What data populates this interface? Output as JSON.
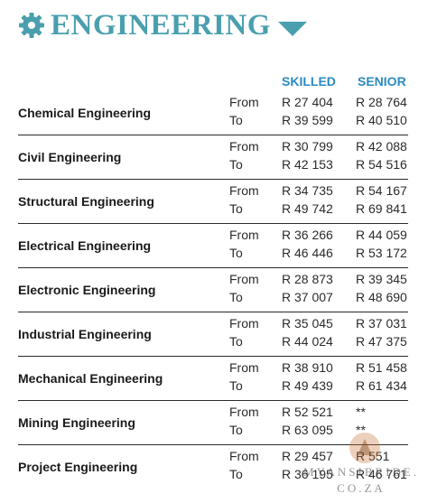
{
  "header": {
    "title": "ENGINEERING",
    "icon_left": "gear-icon",
    "icon_right": "caret-down-icon",
    "accent_color": "#4a9fae"
  },
  "columns": {
    "skilled": "SKILLED",
    "senior": "SENIOR",
    "color": "#2a8ac2"
  },
  "labels": {
    "from": "From",
    "to": "To"
  },
  "rows": [
    {
      "name": "Chemical Engineering",
      "skilled_from": "R 27 404",
      "skilled_to": "R 39 599",
      "senior_from": "R 28 764",
      "senior_to": "R 40 510"
    },
    {
      "name": "Civil Engineering",
      "skilled_from": "R 30 799",
      "skilled_to": "R 42 153",
      "senior_from": "R 42 088",
      "senior_to": "R 54 516"
    },
    {
      "name": "Structural Engineering",
      "skilled_from": "R 34 735",
      "skilled_to": "R 49 742",
      "senior_from": "R 54 167",
      "senior_to": "R 69 841"
    },
    {
      "name": "Electrical Engineering",
      "skilled_from": "R 36 266",
      "skilled_to": "R 46 446",
      "senior_from": "R 44 059",
      "senior_to": "R 53 172"
    },
    {
      "name": "Electronic Engineering",
      "skilled_from": "R 28 873",
      "skilled_to": "R 37 007",
      "senior_from": "R 39 345",
      "senior_to": "R 48 690"
    },
    {
      "name": "Industrial Engineering",
      "skilled_from": "R 35 045",
      "skilled_to": "R 44 024",
      "senior_from": "R 37 031",
      "senior_to": "R 47 375"
    },
    {
      "name": "Mechanical Engineering",
      "skilled_from": "R 38 910",
      "skilled_to": "R 49 439",
      "senior_from": "R 51 458",
      "senior_to": "R 61 434"
    },
    {
      "name": "Mining Engineering",
      "skilled_from": "R 52 521",
      "skilled_to": "R 63 095",
      "senior_from": "**",
      "senior_to": "**"
    },
    {
      "name": "Project Engineering",
      "skilled_from": "R 29 457",
      "skilled_to": "R 36 195",
      "senior_from": "R 551",
      "senior_to": "R 46 761"
    }
  ],
  "watermark": {
    "line1": "MYANSIBRIDE.",
    "line2": "CO.ZA"
  }
}
